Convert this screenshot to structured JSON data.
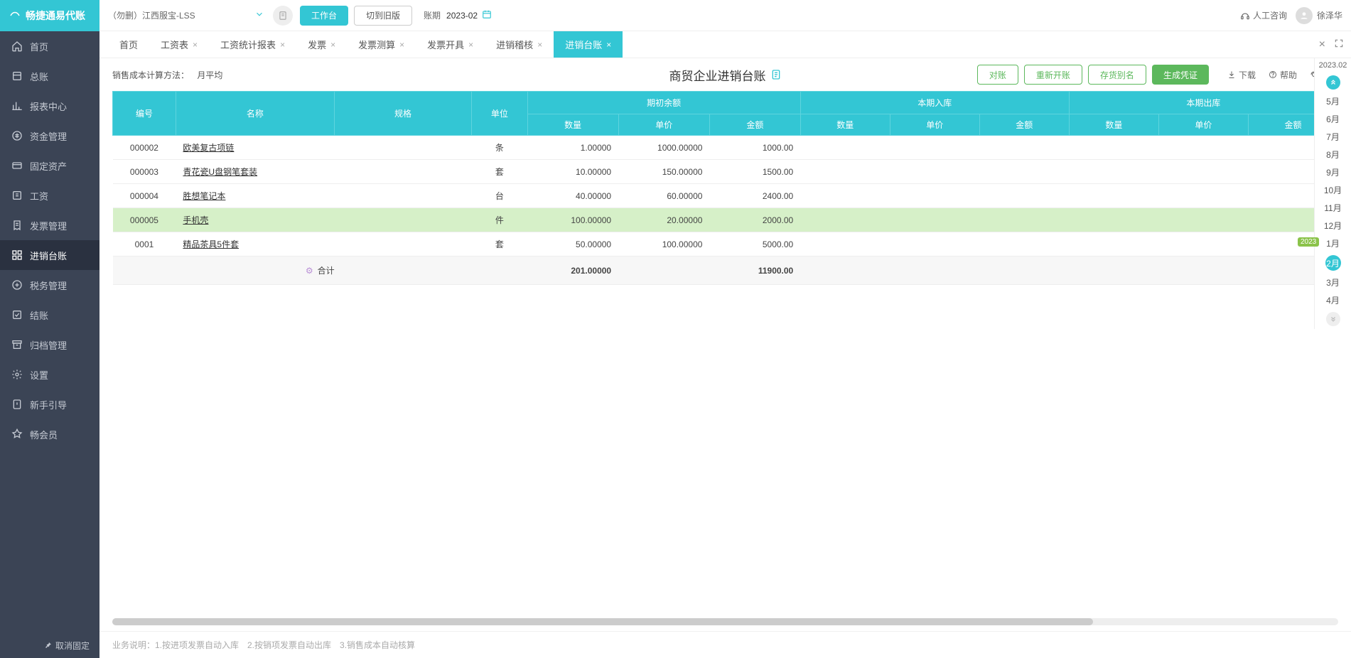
{
  "brand": "畅捷通易代账",
  "sidebar": {
    "items": [
      {
        "label": "首页",
        "icon": "home"
      },
      {
        "label": "总账",
        "icon": "ledger"
      },
      {
        "label": "报表中心",
        "icon": "report"
      },
      {
        "label": "资金管理",
        "icon": "fund"
      },
      {
        "label": "固定资产",
        "icon": "asset"
      },
      {
        "label": "工资",
        "icon": "salary"
      },
      {
        "label": "发票管理",
        "icon": "invoice"
      },
      {
        "label": "进销台账",
        "icon": "stock"
      },
      {
        "label": "税务管理",
        "icon": "tax"
      },
      {
        "label": "结账",
        "icon": "close"
      },
      {
        "label": "归档管理",
        "icon": "archive"
      },
      {
        "label": "设置",
        "icon": "setting"
      },
      {
        "label": "新手引导",
        "icon": "guide"
      },
      {
        "label": "畅会员",
        "icon": "vip"
      }
    ],
    "active_index": 7,
    "pin_label": "取消固定"
  },
  "topbar": {
    "org_name": "（勿删）江西服宝-LSS",
    "workbench_btn": "工作台",
    "switch_btn": "切到旧版",
    "period_label": "账期",
    "period_value": "2023-02",
    "consult_label": "人工咨询",
    "user_name": "徐泽华"
  },
  "tabs": [
    {
      "label": "首页",
      "closable": false
    },
    {
      "label": "工资表",
      "closable": true
    },
    {
      "label": "工资统计报表",
      "closable": true
    },
    {
      "label": "发票",
      "closable": true
    },
    {
      "label": "发票测算",
      "closable": true
    },
    {
      "label": "发票开具",
      "closable": true
    },
    {
      "label": "进销稽核",
      "closable": true
    },
    {
      "label": "进销台账",
      "closable": true
    }
  ],
  "active_tab_index": 7,
  "toolbar": {
    "cost_method_label": "销售成本计算方法：",
    "cost_method_value": "月平均",
    "page_title": "商贸企业进销台账",
    "reconcile_btn": "对账",
    "reopen_btn": "重新开账",
    "alias_btn": "存货别名",
    "voucher_btn": "生成凭证",
    "download_label": "下载",
    "help_label": "帮助",
    "refresh_label": "刷新"
  },
  "table": {
    "headers": {
      "id": "编号",
      "name": "名称",
      "spec": "规格",
      "unit": "单位",
      "opening": "期初余额",
      "in": "本期入库",
      "out": "本期出库",
      "qty": "数量",
      "price": "单价",
      "amount": "金额"
    },
    "rows": [
      {
        "id": "000002",
        "name": "欧美复古项链",
        "unit": "条",
        "qty": "1.00000",
        "price": "1000.00000",
        "amount": "1000.00"
      },
      {
        "id": "000003",
        "name": "青花瓷U盘钢笔套装",
        "unit": "套",
        "qty": "10.00000",
        "price": "150.00000",
        "amount": "1500.00"
      },
      {
        "id": "000004",
        "name": "胜想笔记本",
        "unit": "台",
        "qty": "40.00000",
        "price": "60.00000",
        "amount": "2400.00"
      },
      {
        "id": "000005",
        "name": "手机壳",
        "unit": "件",
        "qty": "100.00000",
        "price": "20.00000",
        "amount": "2000.00",
        "highlight": true
      },
      {
        "id": "0001",
        "name": "精品茶具5件套",
        "unit": "套",
        "qty": "50.00000",
        "price": "100.00000",
        "amount": "5000.00"
      }
    ],
    "total": {
      "label": "合计",
      "qty": "201.00000",
      "amount": "11900.00"
    }
  },
  "footer_note": "业务说明：1.按进项发票自动入库　2.按销项发票自动出库　3.销售成本自动核算",
  "month_panel": {
    "head": "2023.02",
    "months": [
      "5月",
      "6月",
      "7月",
      "8月",
      "9月",
      "10月",
      "11月",
      "12月",
      "1月",
      "2月",
      "3月",
      "4月"
    ],
    "year_tag": "2023",
    "year_tag_index": 8,
    "active_index": 9
  },
  "colors": {
    "primary": "#33c6d4",
    "sidebar_bg": "#3b4455",
    "green": "#5cb85c",
    "highlight_row": "#d6f0c8"
  }
}
